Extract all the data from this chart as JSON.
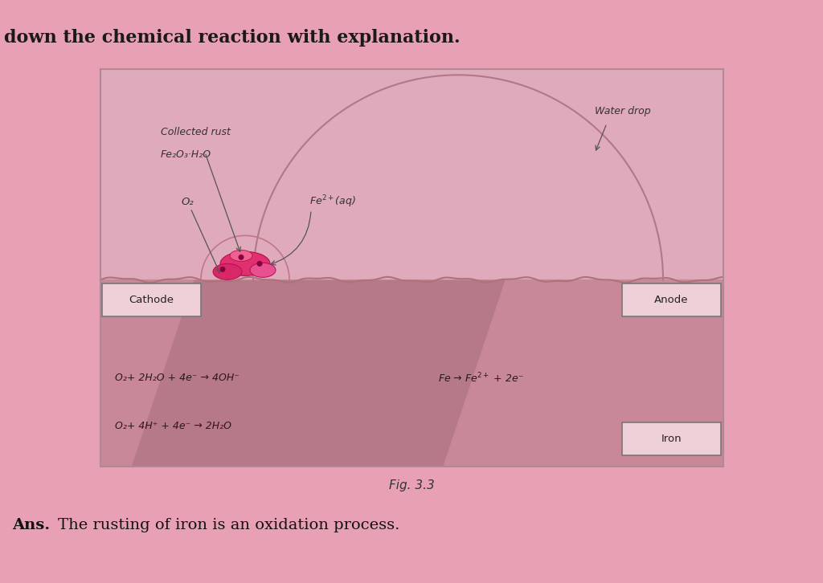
{
  "page_bg": "#e8a0b4",
  "title_top": "down the chemical reaction with explanation.",
  "fig_label": "Fig. 3.3",
  "ans_bold": "Ans.",
  "ans_rest": " The rusting of iron is an oxidation process.",
  "label_collected_rust": "Collected rust",
  "label_formula_rust": "Fe₂O₃·H₂O",
  "label_o2": "O₂",
  "label_fe2aq": "Fe$^{2+}$(aq)",
  "label_water_drop": "Water drop",
  "label_cathode": "Cathode",
  "label_anode": "Anode",
  "label_iron": "Iron",
  "eq1_left": "O₂+ 2H₂O + 4e⁻ → 4OH⁻",
  "eq2_left": "O₂+ 4H⁺ + 4e⁻ → 2H₂O",
  "eq_right": "Fe → Fe$^{2+}$ + 2e⁻",
  "upper_bg": "#dfa8ba",
  "lower_bg": "#c98898",
  "box_edge": "#b07888",
  "rust_color": "#e03070",
  "rust_edge": "#b01050",
  "wave_color": "#c07888",
  "arrow_color": "#555555",
  "text_color": "#333333",
  "white_box_edge": "#888888",
  "dome_color": "#b07888"
}
